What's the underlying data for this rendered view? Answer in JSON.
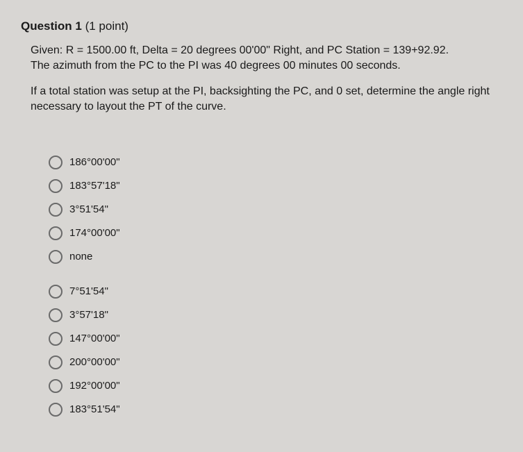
{
  "header": {
    "question_label": "Question 1",
    "points": "(1 point)"
  },
  "body": {
    "line1": "Given: R = 1500.00 ft, Delta = 20 degrees 00'00\" Right, and PC Station = 139+92.92.",
    "line2": "The azimuth from the PC to the PI was 40 degrees 00 minutes 00 seconds.",
    "line3": "If a total station was setup at the PI, backsighting the PC, and 0 set, determine the angle right necessary to layout the PT of the curve."
  },
  "options": [
    {
      "text": "186°00'00\""
    },
    {
      "text": "183°57'18\""
    },
    {
      "text": "3°51'54\""
    },
    {
      "text": "174°00'00\""
    },
    {
      "text": "none"
    },
    {
      "text": "7°51'54\"",
      "gap": true
    },
    {
      "text": "3°57'18\""
    },
    {
      "text": "147°00'00\""
    },
    {
      "text": "200°00'00\""
    },
    {
      "text": "192°00'00\""
    },
    {
      "text": "183°51'54\""
    }
  ],
  "colors": {
    "background": "#d8d6d3",
    "text": "#1a1a1a",
    "radio_border": "#6a6a6a"
  },
  "typography": {
    "header_fontsize": 17,
    "body_fontsize": 16,
    "option_fontsize": 15,
    "font_family": "Arial, Helvetica, sans-serif"
  }
}
